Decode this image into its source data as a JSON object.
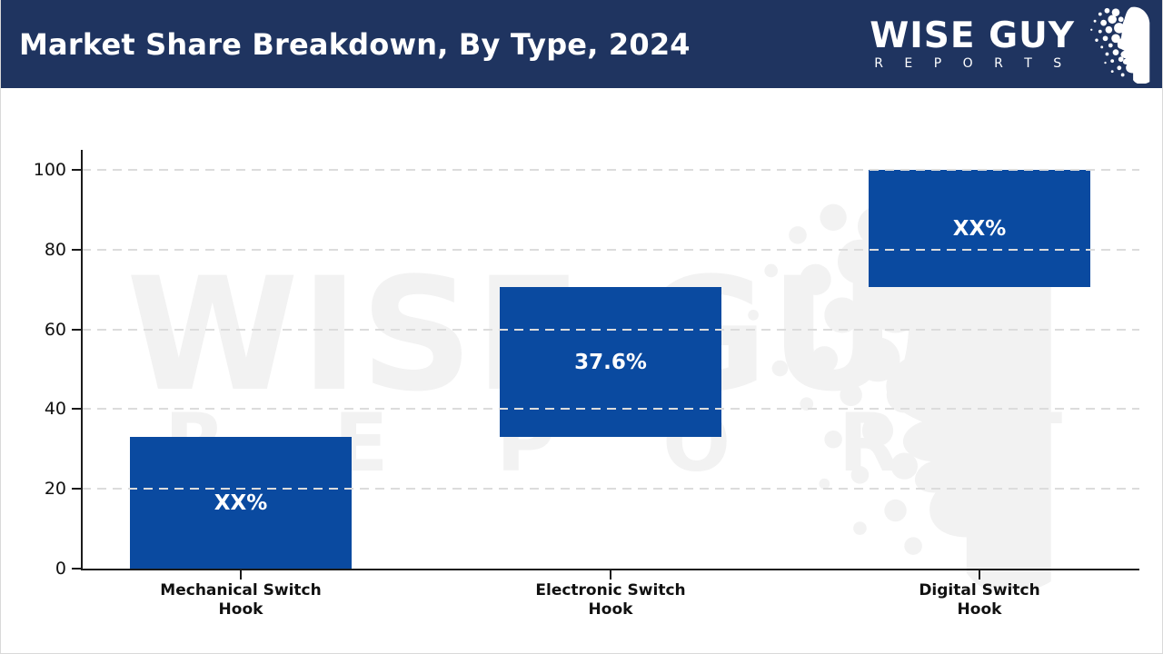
{
  "header": {
    "title": "Market Share Breakdown, By Type, 2024",
    "logo": {
      "brand": "WISE GUY",
      "sub": "R E P O R T S"
    }
  },
  "watermark": {
    "brand": "WISE GUY",
    "sub": "R E P O R T S"
  },
  "chart_data": {
    "type": "bar",
    "subtype": "floating-stacked-segments",
    "title": "Market Share Breakdown, By Type, 2024",
    "categories": [
      "Mechanical Switch\nHook",
      "Electronic Switch\nHook",
      "Digital Switch\nHook"
    ],
    "segments": [
      {
        "category": "Mechanical Switch Hook",
        "start": 0,
        "end": 33,
        "label": "XX%"
      },
      {
        "category": "Electronic Switch Hook",
        "start": 33,
        "end": 70.6,
        "label": "37.6%"
      },
      {
        "category": "Digital Switch Hook",
        "start": 70.6,
        "end": 100,
        "label": "XX%"
      }
    ],
    "xlabel": "",
    "ylabel": "",
    "yticks": [
      0,
      20,
      40,
      60,
      80,
      100
    ],
    "ylim": [
      0,
      105
    ],
    "grid": {
      "horizontal": true,
      "style": "dashed",
      "above_bars": true
    },
    "legend": "none",
    "colors": {
      "bar": "#0A4AA0",
      "bar_label": "#FFFFFF",
      "axis": "#1A1A1A",
      "gridline": "#DCDCDC",
      "header_bg": "#1F3460",
      "watermark": "#F2F2F2"
    }
  }
}
